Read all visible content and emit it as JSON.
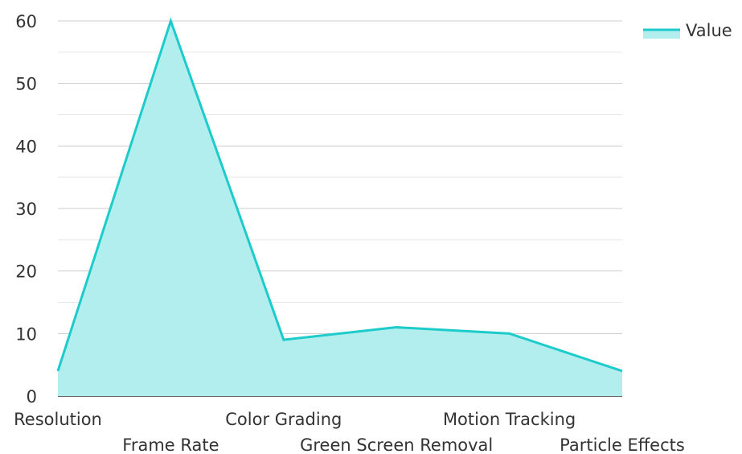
{
  "chart_data": {
    "type": "area",
    "categories": [
      "Resolution",
      "Frame Rate",
      "Color Grading",
      "Green Screen Removal",
      "Motion Tracking",
      "Particle Effects"
    ],
    "series": [
      {
        "name": "Value",
        "values": [
          4,
          60,
          9,
          11,
          10,
          4
        ]
      }
    ],
    "ylim": [
      0,
      60
    ],
    "yticks": [
      0,
      10,
      20,
      30,
      40,
      50,
      60
    ],
    "grid": true,
    "legend": "top-right",
    "colors": {
      "line": "#1ecbcb",
      "fill": "#b2eeee",
      "grid": "#cccccc",
      "minor_grid": "#e6e6e6",
      "axis": "#333333"
    }
  }
}
